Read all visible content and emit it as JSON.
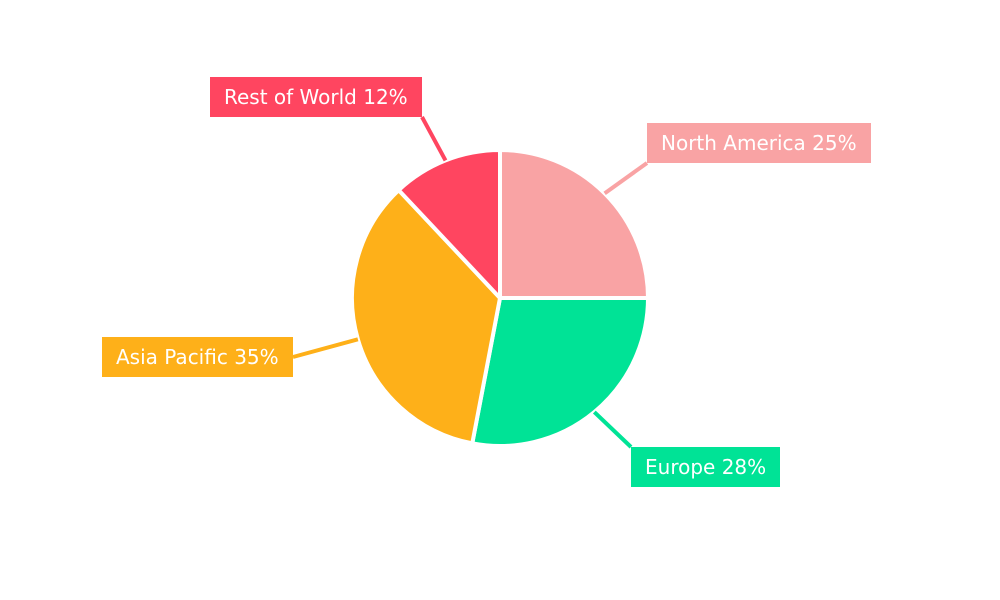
{
  "chart_data": {
    "type": "pie",
    "title": "",
    "categories": [
      "North America",
      "Europe",
      "Asia Pacific",
      "Rest of World"
    ],
    "values": [
      25,
      28,
      35,
      12
    ],
    "value_unit": "%",
    "colors": [
      "#F9A3A4",
      "#00E396",
      "#FEB019",
      "#FF4560"
    ],
    "slice_divider_color": "#FFFFFF",
    "background": "#FFFFFF",
    "label_text_color": "#FFFFFF",
    "start_angle_deg": 0,
    "direction": "clockwise",
    "legend": "none",
    "label_style": "external-callout-boxes-with-leader-lines",
    "callouts": [
      {
        "text": "North America 25%"
      },
      {
        "text": "Europe 28%"
      },
      {
        "text": "Asia Pacific 35%"
      },
      {
        "text": "Rest of World 12%"
      }
    ]
  }
}
